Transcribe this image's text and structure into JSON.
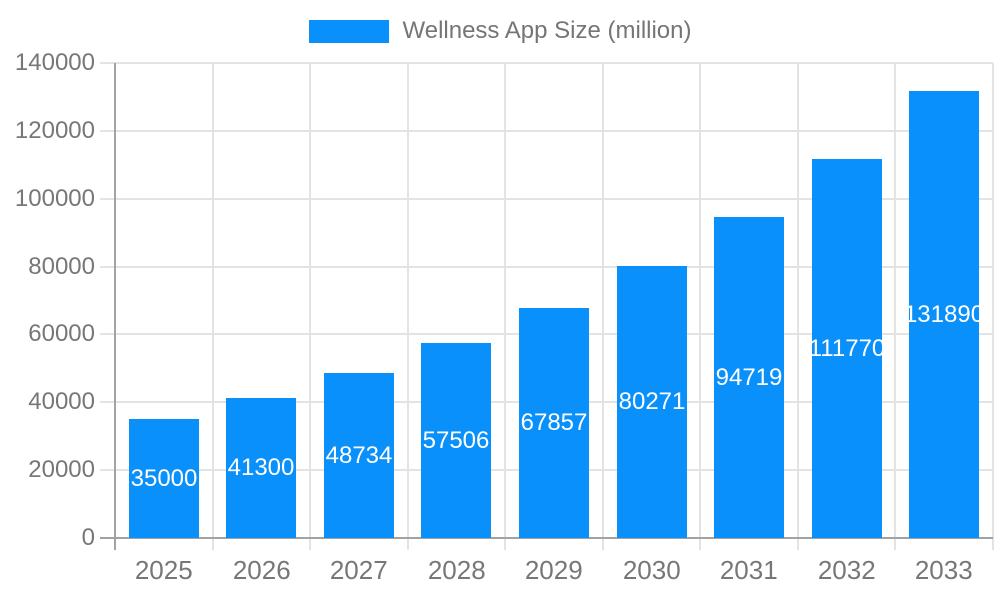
{
  "chart_data": {
    "type": "bar",
    "title": "Wellness App Size (million)",
    "legend": {
      "label": "Wellness App Size (million)",
      "position": "top",
      "marker": "rectangle"
    },
    "categories": [
      "2025",
      "2026",
      "2027",
      "2028",
      "2029",
      "2030",
      "2031",
      "2032",
      "2033"
    ],
    "values": [
      35000,
      41300,
      48734,
      57506,
      67857,
      80271,
      94719,
      111770,
      131890
    ],
    "value_labels_inside_bars": true,
    "xlabel": "",
    "ylabel": "",
    "ylim": [
      0,
      140000
    ],
    "yticks": [
      0,
      20000,
      40000,
      60000,
      80000,
      100000,
      120000,
      140000
    ],
    "grid": true,
    "colors": {
      "bar": "#0A90FA",
      "grid": "#e3e3e3",
      "axis": "#a2a2a2",
      "tick_text": "#777777",
      "legend_text": "#757575",
      "value_label_text": "#ffffff",
      "background": "#ffffff"
    }
  }
}
